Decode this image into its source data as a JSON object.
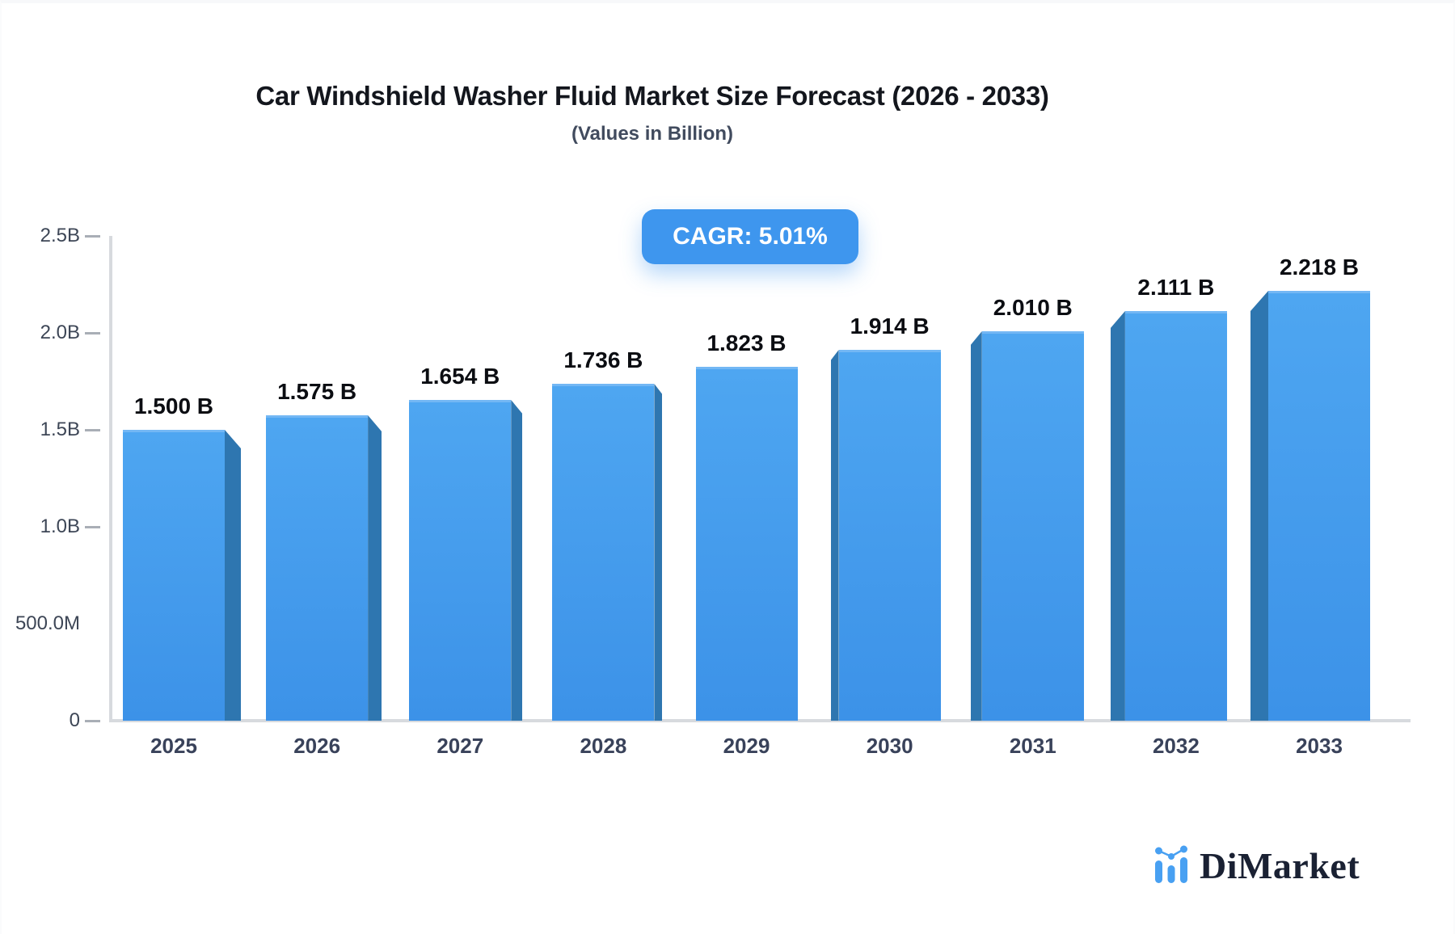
{
  "chart_data": {
    "type": "bar",
    "title": "Car Windshield Washer Fluid Market Size Forecast (2026 - 2033)",
    "subtitle": "(Values in Billion)",
    "annotation": "CAGR: 5.01%",
    "annotation_bg": "#3e96ee",
    "categories": [
      "2025",
      "2026",
      "2027",
      "2028",
      "2029",
      "2030",
      "2031",
      "2032",
      "2033"
    ],
    "values": [
      1.5,
      1.575,
      1.654,
      1.736,
      1.823,
      1.914,
      2.01,
      2.111,
      2.218
    ],
    "value_labels": [
      "1.500 B",
      "1.575 B",
      "1.654 B",
      "1.736 B",
      "1.823 B",
      "1.914 B",
      "2.010 B",
      "2.111 B",
      "2.218 B"
    ],
    "xlabel": "",
    "ylabel": "",
    "ylim": [
      0,
      2.5
    ],
    "yticks": [
      {
        "label": "2.5B",
        "value": 2.5,
        "dash": true
      },
      {
        "label": "2.0B",
        "value": 2.0,
        "dash": true
      },
      {
        "label": "1.5B",
        "value": 1.5,
        "dash": true
      },
      {
        "label": "1.0B",
        "value": 1.0,
        "dash": true
      },
      {
        "label": "500.0M",
        "value": 0.5,
        "dash": false
      },
      {
        "label": "0",
        "value": 0.0,
        "dash": true
      }
    ],
    "grid": false,
    "legend": false,
    "bar_color_top": "#4ea6f1",
    "bar_color_bottom": "#3c92e8",
    "bar_edge_top": "#73b7f4",
    "bar_side_color": "#2e76b0",
    "axis_color": "#d7dade"
  },
  "footer": {
    "brand": "DiMarket",
    "brand_color": "#1a2133",
    "icon": "dimarket-chart-icon",
    "icon_color": "#48a0f2"
  }
}
